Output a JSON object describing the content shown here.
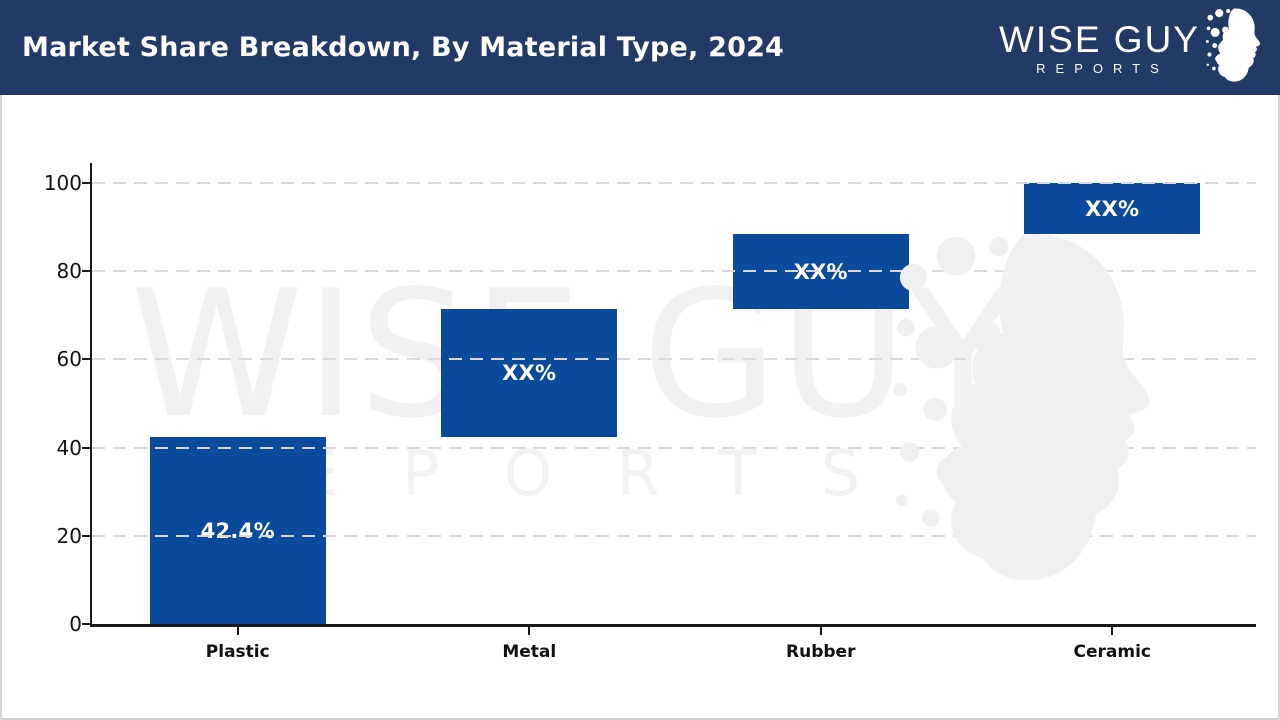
{
  "header": {
    "title": "Market Share Breakdown, By Material Type, 2024",
    "logo": {
      "line1": "WISE GUY",
      "line2": "REPORTS"
    }
  },
  "watermark": {
    "line1": "WISE GUY",
    "line2": "REPORTS"
  },
  "colors": {
    "header_bg": "#223a66",
    "bar_blue": "#0a4a9b",
    "grid": "#d9d9d9",
    "axis": "#1a1a1a",
    "watermark": "#f1f1f4"
  },
  "chart_data": {
    "type": "bar",
    "subtype": "waterfall",
    "title": "Market Share Breakdown, By Material Type, 2024",
    "categories": [
      "Plastic",
      "Metal",
      "Rubber",
      "Ceramic"
    ],
    "segments": [
      {
        "category": "Plastic",
        "start": 0,
        "end": 42.4,
        "label": "42.4%"
      },
      {
        "category": "Metal",
        "start": 42.4,
        "end": 71.4,
        "label": "XX%"
      },
      {
        "category": "Rubber",
        "start": 71.4,
        "end": 88.4,
        "label": "XX%"
      },
      {
        "category": "Ceramic",
        "start": 88.4,
        "end": 100,
        "label": "XX%"
      }
    ],
    "xlabel": "",
    "ylabel": "",
    "ylim": [
      0,
      100
    ],
    "yticks": [
      0,
      20,
      40,
      60,
      80,
      100
    ],
    "grid": "dashed-horizontal",
    "legend": "none",
    "bar_color": "#0a4a9b",
    "bar_label_color": "#ffffff"
  }
}
